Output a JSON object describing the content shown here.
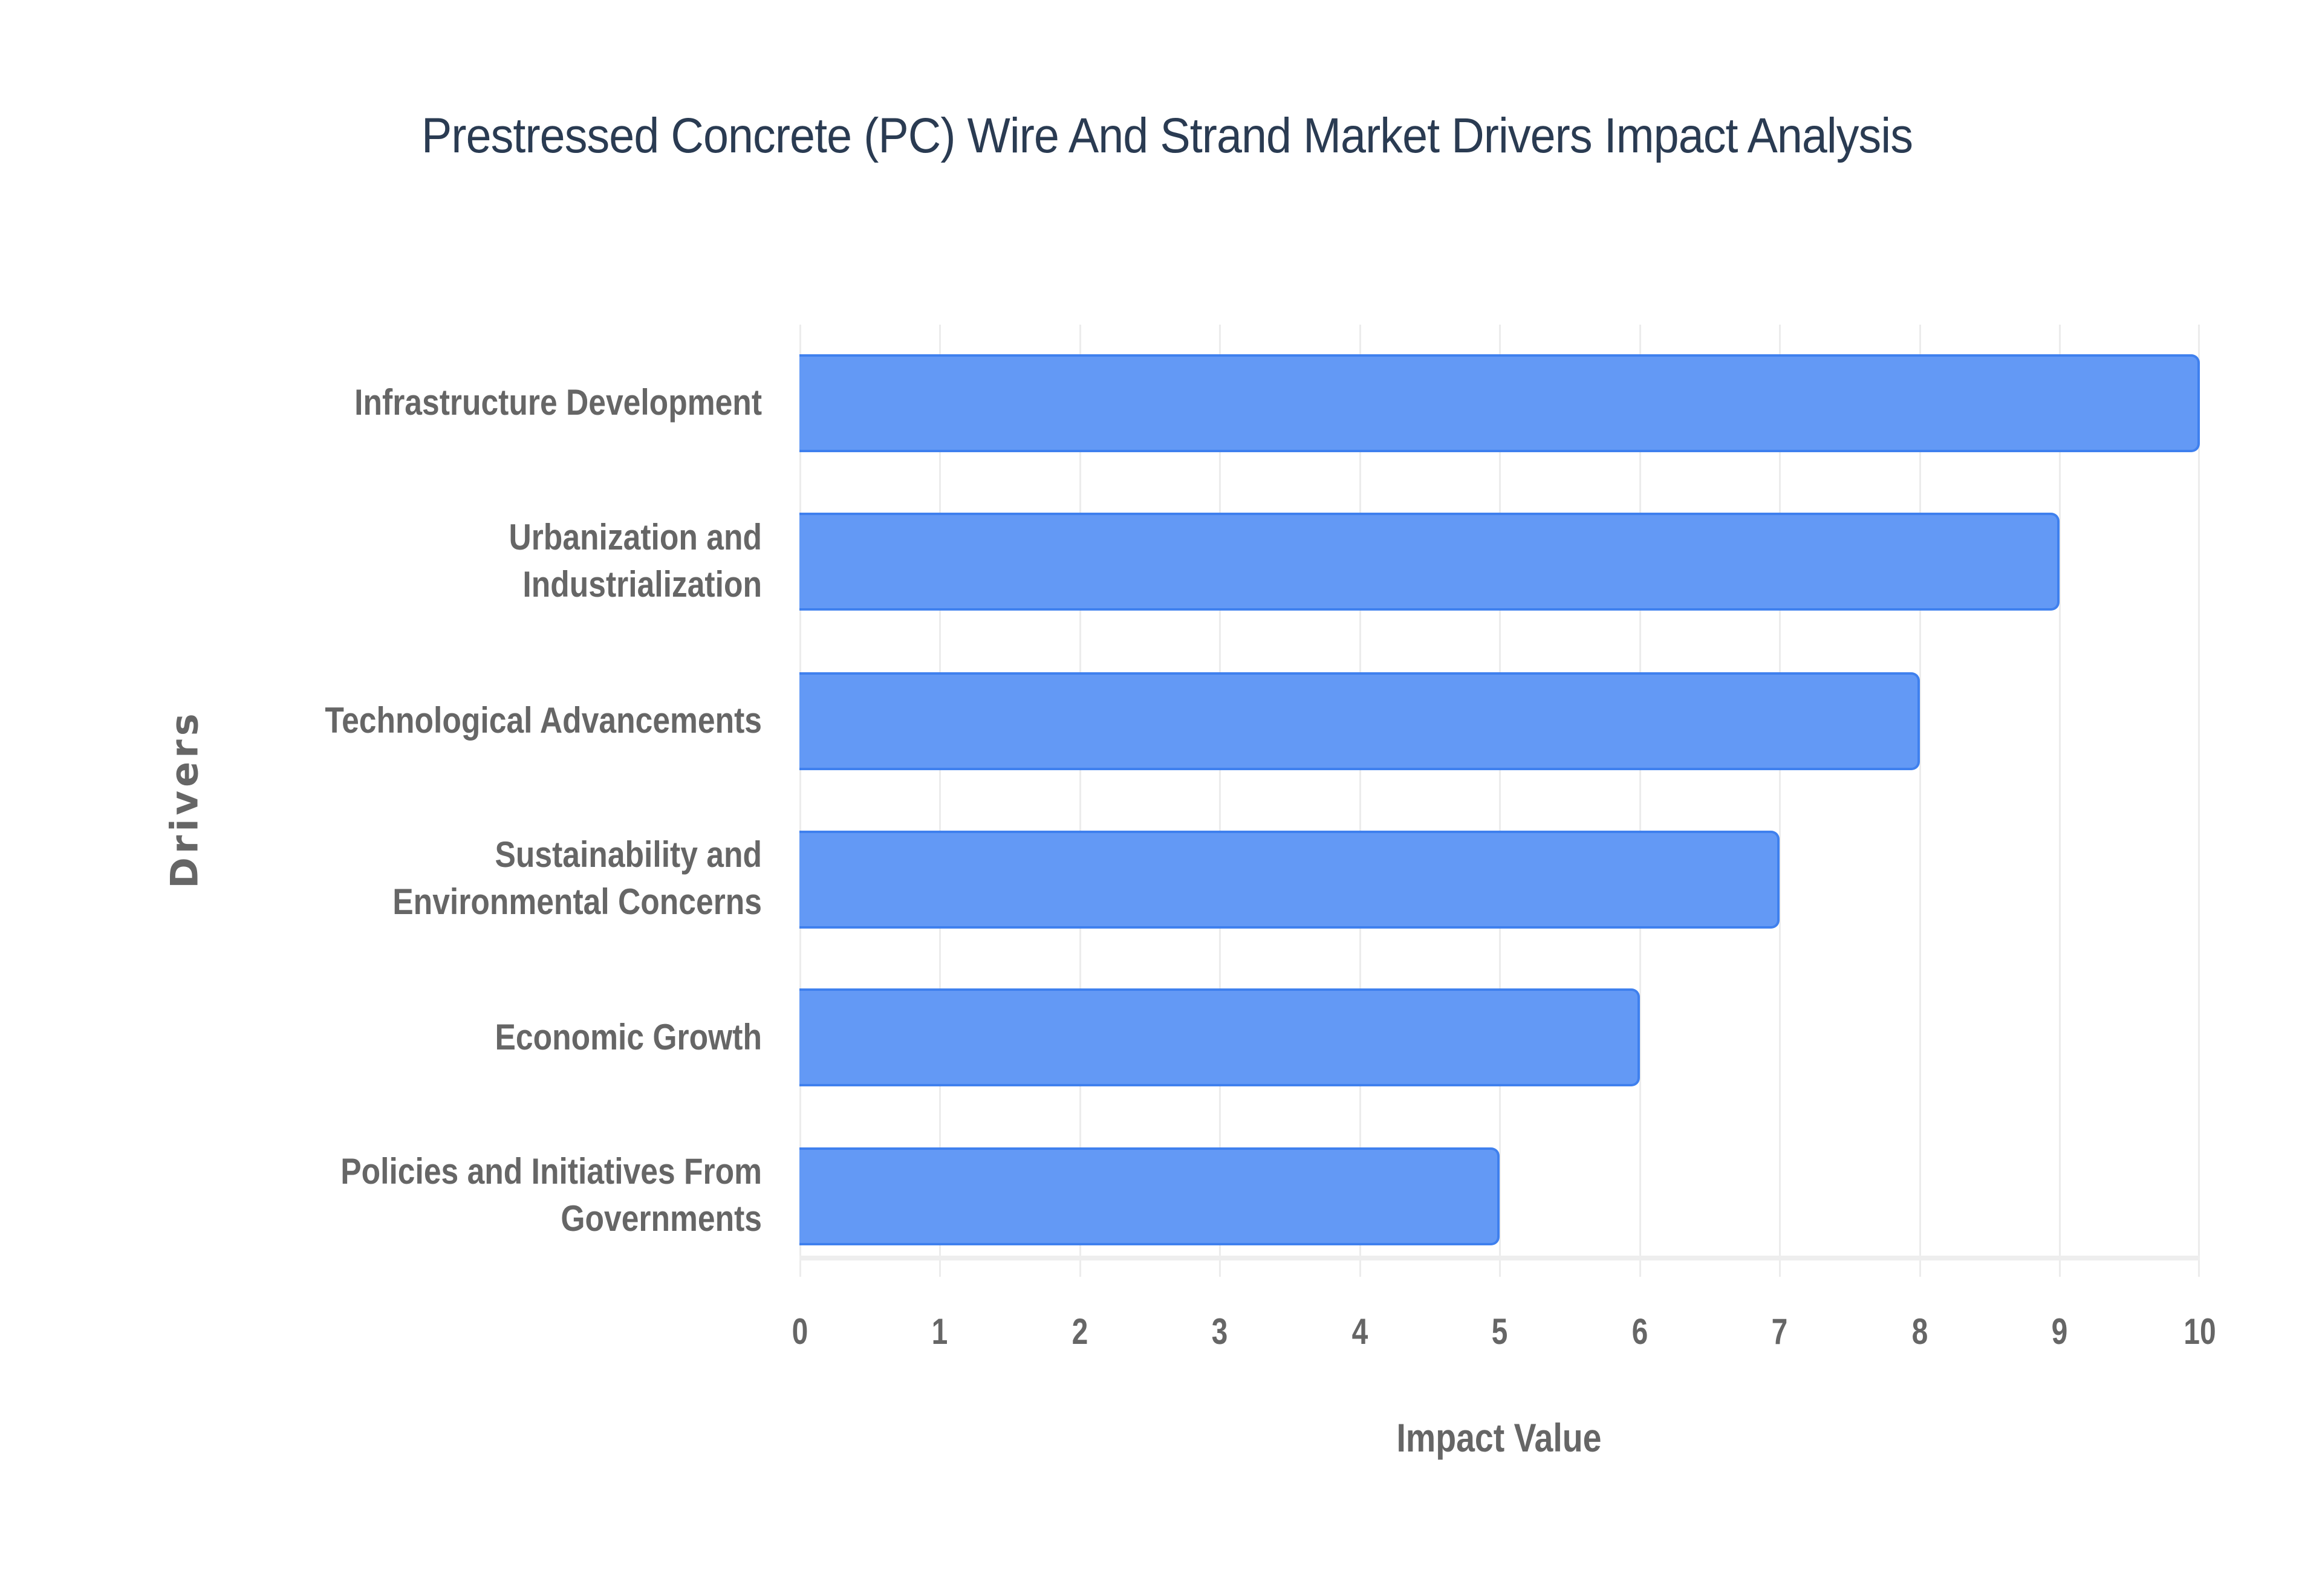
{
  "chart_data": {
    "type": "bar",
    "orientation": "horizontal",
    "title": "Prestressed Concrete (PC) Wire And Strand Market Drivers Impact Analysis",
    "xlabel": "Impact Value",
    "ylabel": "Drivers",
    "categories": [
      "Infrastructure Development",
      "Urbanization and\nIndustrialization",
      "Technological Advancements",
      "Sustainability and\nEnvironmental Concerns",
      "Economic Growth",
      "Policies and Initiatives From\nGovernments"
    ],
    "values": [
      10,
      9,
      8,
      7,
      6,
      5
    ],
    "xlim": [
      0,
      10
    ],
    "xticks": [
      "0",
      "1",
      "2",
      "3",
      "4",
      "5",
      "6",
      "7",
      "8",
      "9",
      "10"
    ],
    "grid": "vertical",
    "legend": null,
    "colors": {
      "bar_fill": "#6399f5",
      "bar_border": "#3f80ee",
      "text": "#666666",
      "title": "#2a3b52",
      "grid": "#ececec"
    }
  }
}
